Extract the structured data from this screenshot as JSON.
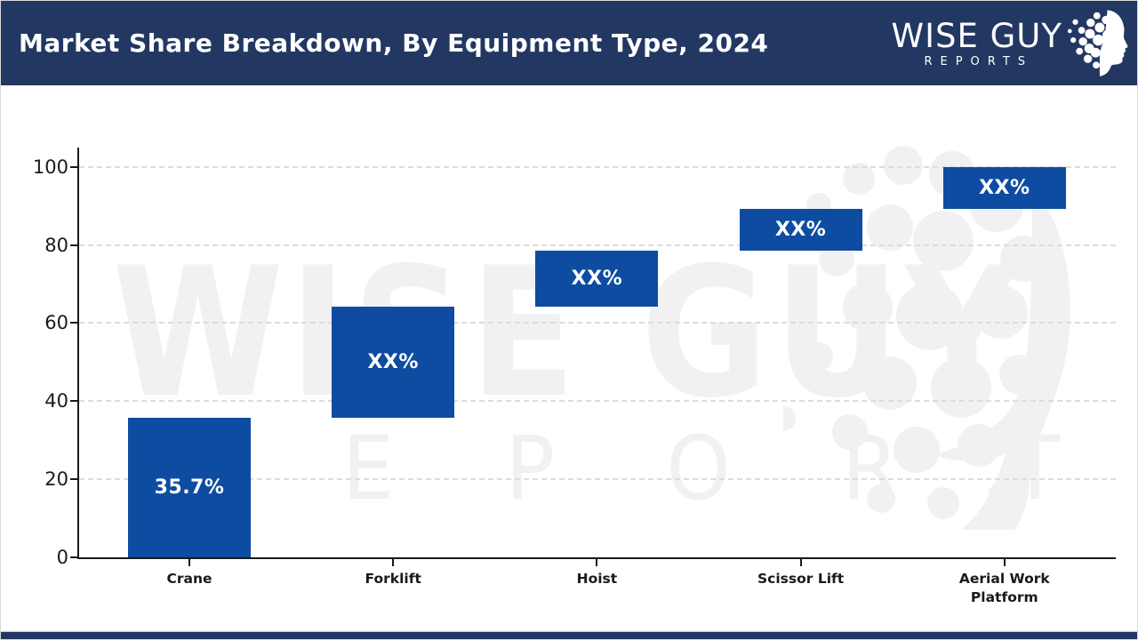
{
  "header": {
    "title": "Market Share Breakdown, By Equipment Type, 2024",
    "logo": {
      "primary": "WISE GUY",
      "secondary": "REPORTS",
      "face_icon": "dotted-head-profile"
    }
  },
  "watermark": {
    "primary": "WISE GUY",
    "secondary": "R E P O R T S"
  },
  "colors": {
    "header_bg": "#223863",
    "footer_bg": "#223863",
    "bar": "#0d4ca1",
    "bar_label_text": "#ffffff",
    "grid": "#dcdcdc",
    "axis": "#1a1a1a",
    "watermark": "#f1f1f3"
  },
  "chart_data": {
    "type": "bar",
    "subtype": "waterfall",
    "title": "Market Share Breakdown, By Equipment Type, 2024",
    "categories": [
      "Crane",
      "Forklift",
      "Hoist",
      "Scissor Lift",
      "Aerial Work Platform"
    ],
    "series": [
      {
        "name": "Market share (%)",
        "starts": [
          0,
          35.7,
          64.3,
          78.6,
          89.3
        ],
        "ends": [
          35.7,
          64.3,
          78.6,
          89.3,
          100
        ]
      }
    ],
    "bar_labels": [
      "35.7%",
      "XX%",
      "XX%",
      "XX%",
      "XX%"
    ],
    "xlabel": "",
    "ylabel": "",
    "ylim": [
      0,
      100
    ],
    "yticks": [
      0,
      20,
      40,
      60,
      80,
      100
    ],
    "grid": true,
    "grid_style": "dashed",
    "legend": false
  }
}
